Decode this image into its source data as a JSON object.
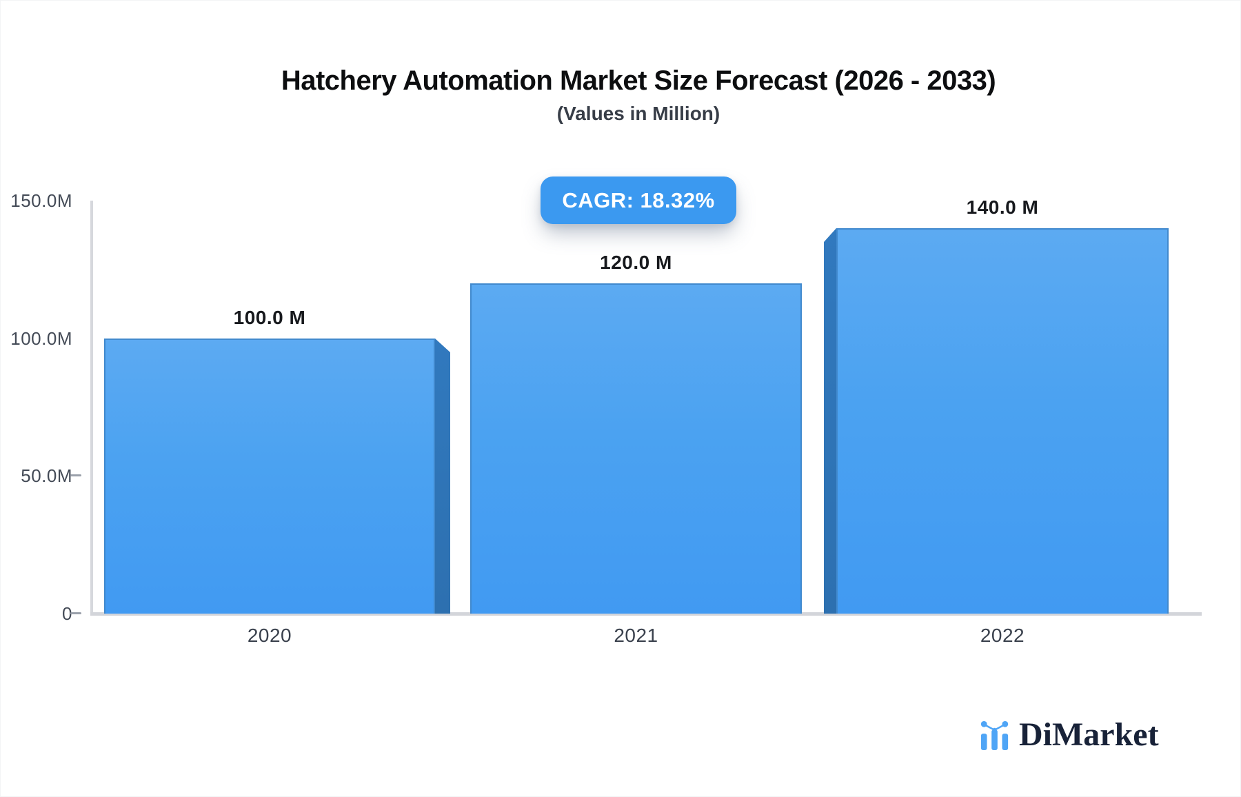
{
  "header": {
    "title": "Hatchery Automation Market Size Forecast (2026 - 2033)",
    "subtitle": "(Values in Million)",
    "cagr_label": "CAGR: 18.32%"
  },
  "chart_data": {
    "type": "bar",
    "title": "Hatchery Automation Market Size Forecast (2026 - 2033)",
    "subtitle": "(Values in Million)",
    "unit": "Million",
    "cagr": "18.32%",
    "categories": [
      "2020",
      "2021",
      "2022"
    ],
    "values": [
      100,
      120,
      140
    ],
    "value_labels": [
      "100.0 M",
      "120.0 M",
      "140.0 M"
    ],
    "ylim": [
      0,
      150
    ],
    "yticks": [
      {
        "value": 150,
        "label": "150.0M",
        "tick": false
      },
      {
        "value": 100,
        "label": "100.0M",
        "tick": false
      },
      {
        "value": 50,
        "label": "50.0M",
        "tick": true
      },
      {
        "value": 0,
        "label": "0",
        "tick": true
      }
    ],
    "grid": false,
    "legend": false,
    "bar_color_top": "#5CAAF2",
    "bar_color_bottom": "#419AF2",
    "bar_side_color": "#2E73B5",
    "accent_color": "#3B99F0",
    "axis_color": "#D6D8DD"
  },
  "branding": {
    "logo_text": "DiMarket",
    "logo_icon": "mini-bar-chart-icon",
    "icon_color": "#4FA5F6",
    "text_color": "#182238"
  }
}
